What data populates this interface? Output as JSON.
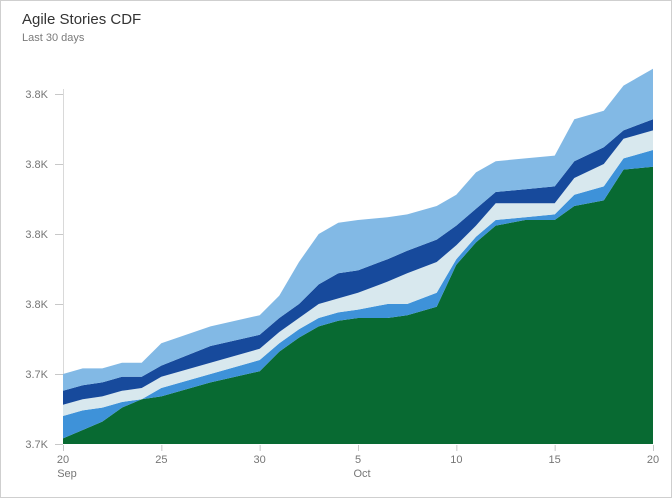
{
  "header": {
    "title": "Agile Stories CDF",
    "subtitle": "Last 30 days"
  },
  "chart_data": {
    "type": "area",
    "stacked": true,
    "title": "Agile Stories CDF",
    "subtitle": "Last 30 days",
    "legend": "none",
    "grid": "none",
    "x_axis": {
      "unit": "date",
      "start": "Sep 20",
      "end": "Oct 20",
      "span_days": 30,
      "ticks": [
        {
          "day": 0,
          "label": "20",
          "month": "Sep"
        },
        {
          "day": 5,
          "label": "25"
        },
        {
          "day": 10,
          "label": "30"
        },
        {
          "day": 15,
          "label": "5",
          "month": "Oct"
        },
        {
          "day": 20,
          "label": "10"
        },
        {
          "day": 25,
          "label": "15"
        },
        {
          "day": 30,
          "label": "20"
        }
      ]
    },
    "y_axis": {
      "min": 3700,
      "max": 3825,
      "step": 25,
      "tick_labels_bottom_to_top": [
        "3.7K",
        "3.7K",
        "3.8K",
        "3.8K",
        "3.8K",
        "3.8K"
      ]
    },
    "baseline_value": 3700,
    "days": [
      0,
      1,
      2,
      3,
      4,
      5,
      7.5,
      10,
      11,
      12,
      13,
      14,
      15,
      16.5,
      17.5,
      19,
      20,
      21,
      22,
      23.5,
      25,
      26,
      27.5,
      28.5,
      30
    ],
    "series_note": "values are cumulative stack tops (approx, read from pixels); bands listed bottom to top",
    "series": [
      {
        "name": "dark-green-band",
        "color": "#086a32",
        "cumulative": [
          3702,
          3705,
          3708,
          3713,
          3716,
          3717,
          3722,
          3726,
          3733,
          3738,
          3742,
          3744,
          3745,
          3745,
          3746,
          3749,
          3764,
          3772,
          3778,
          3780,
          3780,
          3785,
          3787,
          3798,
          3799
        ]
      },
      {
        "name": "medium-blue-band",
        "color": "#3e92d9",
        "cumulative": [
          3710,
          3712,
          3713,
          3715,
          3716,
          3720,
          3725,
          3730,
          3736,
          3741,
          3745,
          3747,
          3748,
          3750,
          3750,
          3754,
          3766,
          3774,
          3780,
          3781,
          3782,
          3789,
          3792,
          3802,
          3805
        ]
      },
      {
        "name": "pale-blue-band",
        "color": "#d8e8ee",
        "cumulative": [
          3714,
          3716,
          3717,
          3719,
          3720,
          3724,
          3729,
          3734,
          3740,
          3745,
          3750,
          3752,
          3754,
          3758,
          3761,
          3765,
          3771,
          3778,
          3786,
          3786,
          3786,
          3795,
          3800,
          3809,
          3812
        ]
      },
      {
        "name": "navy-band",
        "color": "#174a9c",
        "cumulative": [
          3719,
          3721,
          3722,
          3724,
          3724,
          3728,
          3735,
          3739,
          3745,
          3750,
          3757,
          3761,
          3762,
          3766,
          3769,
          3773,
          3778,
          3784,
          3790,
          3791,
          3792,
          3801,
          3806,
          3812,
          3816
        ]
      },
      {
        "name": "sky-blue-band",
        "color": "#82b9e5",
        "cumulative": [
          3725,
          3727,
          3727,
          3729,
          3729,
          3736,
          3742,
          3746,
          3753,
          3765,
          3775,
          3779,
          3780,
          3781,
          3782,
          3785,
          3789,
          3797,
          3801,
          3802,
          3803,
          3816,
          3819,
          3828,
          3834
        ]
      }
    ],
    "axis_color": "#d9d9d9",
    "tick_color": "#c8c8c8",
    "label_color": "#767676"
  }
}
